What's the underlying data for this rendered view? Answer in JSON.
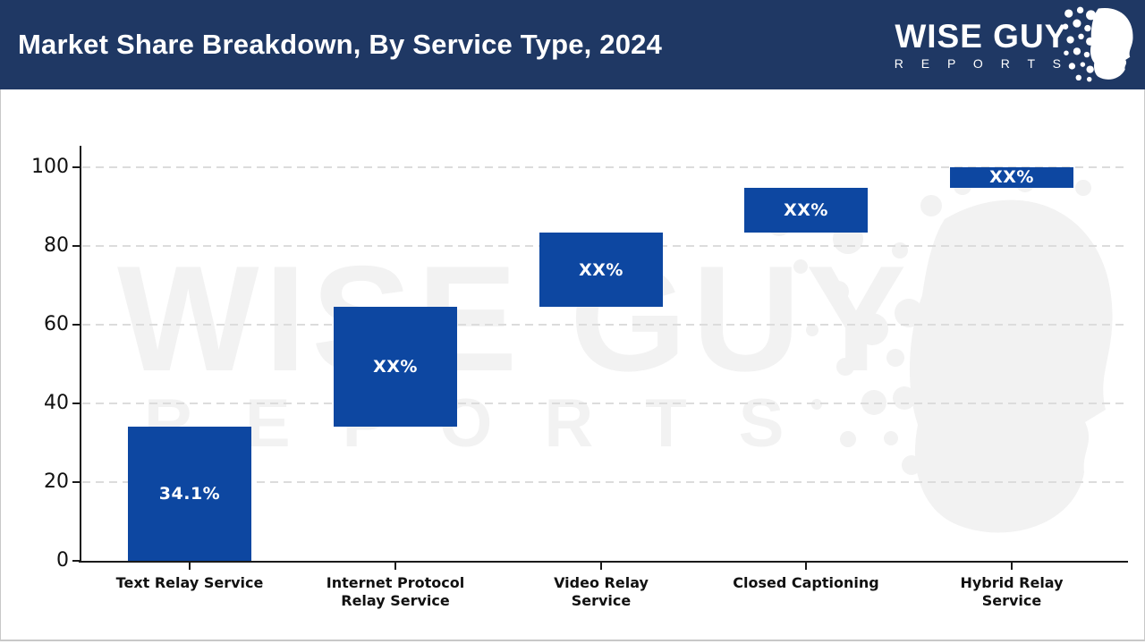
{
  "header": {
    "title": "Market Share Breakdown, By Service Type, 2024",
    "logo": {
      "wordmark": "WISE GUY",
      "subtext": "R E P O R T S"
    }
  },
  "watermark": {
    "line1": "WISE GUY",
    "line2": "REPORTS"
  },
  "chart_data": {
    "type": "bar",
    "subtype": "waterfall",
    "title": "Market Share Breakdown, By Service Type, 2024",
    "categories": [
      "Text Relay Service",
      "Internet Protocol\nRelay Service",
      "Video Relay\nService",
      "Closed Captioning",
      "Hybrid Relay\nService"
    ],
    "segments": [
      [
        0,
        34.1
      ],
      [
        34.1,
        64.5
      ],
      [
        64.5,
        83.4
      ],
      [
        83.4,
        94.8
      ],
      [
        94.8,
        100
      ]
    ],
    "values": [
      34.1,
      30.4,
      18.9,
      11.4,
      5.2
    ],
    "bar_labels": [
      "34.1%",
      "XX%",
      "XX%",
      "XX%",
      "XX%"
    ],
    "ylim": [
      0,
      100
    ],
    "yticks": [
      0,
      20,
      40,
      60,
      80,
      100
    ],
    "grid": "horizontal-dashed",
    "legend": "none",
    "bar_color": "#0d47a1",
    "bar_label_color": "#ffffff"
  },
  "colors": {
    "header_bg": "#1f3864",
    "grid": "#dcdcdc",
    "axis": "#1a1a1a",
    "watermark": "#f2f2f2",
    "border": "#c8c8c8"
  }
}
